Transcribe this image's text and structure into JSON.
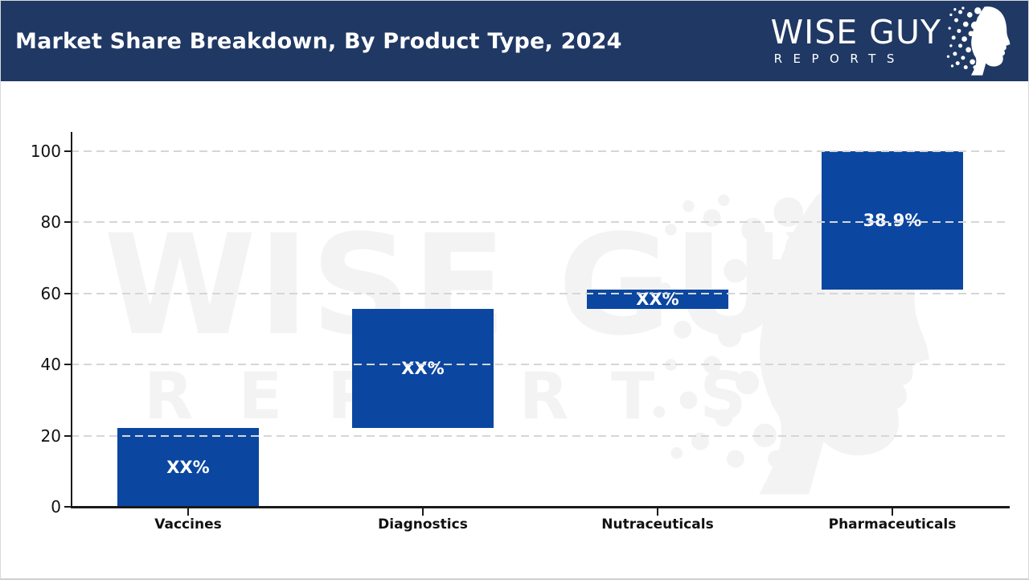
{
  "header": {
    "title": "Market Share Breakdown, By Product Type, 2024",
    "background_color": "#203864"
  },
  "logo": {
    "line1": "WISE GUY",
    "line2": "REPORTS"
  },
  "watermark": {
    "line1": "WISE GUY",
    "line2": "REPORTS"
  },
  "chart_data": {
    "type": "bar",
    "subtype": "waterfall",
    "title": "Market Share Breakdown, By Product Type, 2024",
    "categories": [
      "Vaccines",
      "Diagnostics",
      "Nutraceuticals",
      "Pharmaceuticals"
    ],
    "segments": [
      {
        "category": "Vaccines",
        "start": 0,
        "end": 22.2,
        "label": "XX%"
      },
      {
        "category": "Diagnostics",
        "start": 22.2,
        "end": 55.6,
        "label": "XX%"
      },
      {
        "category": "Nutraceuticals",
        "start": 55.6,
        "end": 61.1,
        "label": "XX%"
      },
      {
        "category": "Pharmaceuticals",
        "start": 61.1,
        "end": 100,
        "label": "38.9%"
      }
    ],
    "ylim": [
      0,
      100
    ],
    "yticks": [
      0,
      20,
      40,
      60,
      80,
      100
    ],
    "xlabel": "",
    "ylabel": "",
    "grid": "dashed-horizontal",
    "legend": "none",
    "bar_color": "#0b47a1",
    "bar_label_color": "#ffffff",
    "axis_color": "#1a1a1a",
    "gridline_color": "#d6d6d6"
  }
}
